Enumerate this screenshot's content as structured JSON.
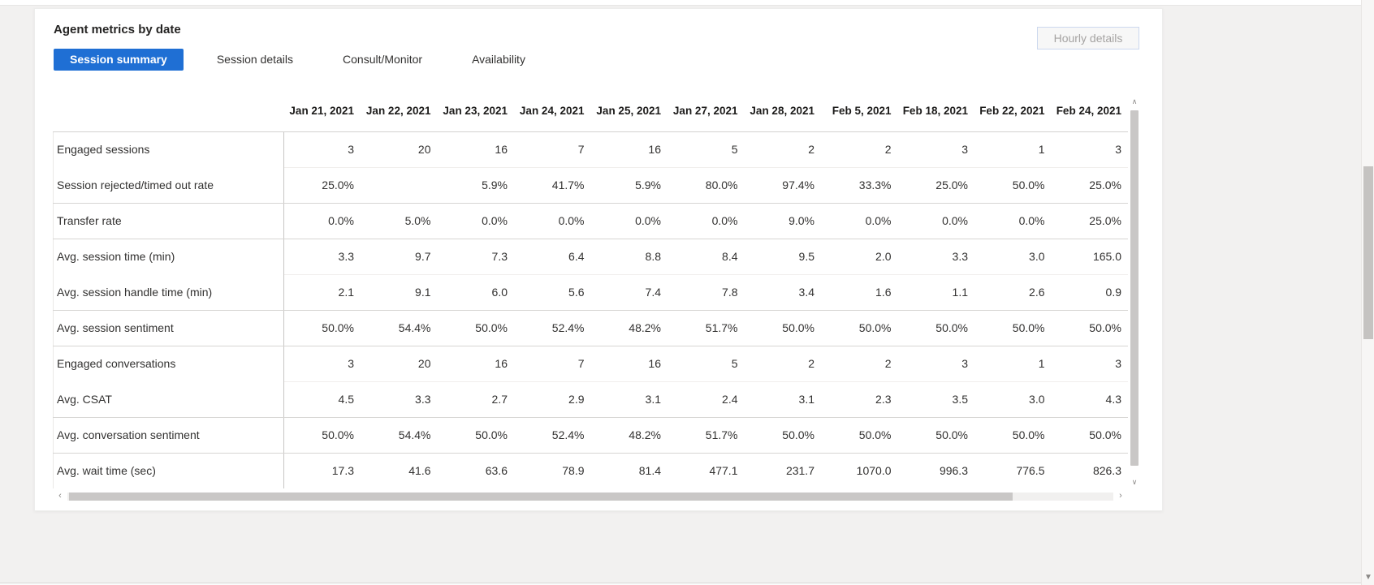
{
  "window": {
    "background": "#f2f1f0"
  },
  "panel": {
    "title": "Agent metrics by date",
    "accent_color": "#1f6fd4",
    "tabs": [
      {
        "label": "Session summary",
        "active": true
      },
      {
        "label": "Session details",
        "active": false
      },
      {
        "label": "Consult/Monitor",
        "active": false
      },
      {
        "label": "Availability",
        "active": false
      }
    ],
    "hourly_details_button": "Hourly details"
  },
  "table": {
    "columns": [
      "Jan 21, 2021",
      "Jan 22, 2021",
      "Jan 23, 2021",
      "Jan 24, 2021",
      "Jan 25, 2021",
      "Jan 27, 2021",
      "Jan 28, 2021",
      "Feb 5, 2021",
      "Feb 18, 2021",
      "Feb 22, 2021",
      "Feb 24, 2021"
    ],
    "rows": [
      {
        "label": "Engaged sessions",
        "group_end": false,
        "values": [
          "3",
          "20",
          "16",
          "7",
          "16",
          "5",
          "2",
          "2",
          "3",
          "1",
          "3"
        ]
      },
      {
        "label": "Session rejected/timed out rate",
        "group_end": true,
        "values": [
          "25.0%",
          "",
          "5.9%",
          "41.7%",
          "5.9%",
          "80.0%",
          "97.4%",
          "33.3%",
          "25.0%",
          "50.0%",
          "25.0%"
        ]
      },
      {
        "label": "Transfer rate",
        "group_end": true,
        "values": [
          "0.0%",
          "5.0%",
          "0.0%",
          "0.0%",
          "0.0%",
          "0.0%",
          "9.0%",
          "0.0%",
          "0.0%",
          "0.0%",
          "25.0%"
        ]
      },
      {
        "label": "Avg. session time (min)",
        "group_end": false,
        "values": [
          "3.3",
          "9.7",
          "7.3",
          "6.4",
          "8.8",
          "8.4",
          "9.5",
          "2.0",
          "3.3",
          "3.0",
          "165.0"
        ]
      },
      {
        "label": "Avg. session handle time (min)",
        "group_end": true,
        "values": [
          "2.1",
          "9.1",
          "6.0",
          "5.6",
          "7.4",
          "7.8",
          "3.4",
          "1.6",
          "1.1",
          "2.6",
          "0.9"
        ]
      },
      {
        "label": "Avg. session sentiment",
        "group_end": true,
        "values": [
          "50.0%",
          "54.4%",
          "50.0%",
          "52.4%",
          "48.2%",
          "51.7%",
          "50.0%",
          "50.0%",
          "50.0%",
          "50.0%",
          "50.0%"
        ]
      },
      {
        "label": "Engaged conversations",
        "group_end": false,
        "values": [
          "3",
          "20",
          "16",
          "7",
          "16",
          "5",
          "2",
          "2",
          "3",
          "1",
          "3"
        ]
      },
      {
        "label": "Avg. CSAT",
        "group_end": true,
        "values": [
          "4.5",
          "3.3",
          "2.7",
          "2.9",
          "3.1",
          "2.4",
          "3.1",
          "2.3",
          "3.5",
          "3.0",
          "4.3"
        ]
      },
      {
        "label": "Avg. conversation sentiment",
        "group_end": true,
        "values": [
          "50.0%",
          "54.4%",
          "50.0%",
          "52.4%",
          "48.2%",
          "51.7%",
          "50.0%",
          "50.0%",
          "50.0%",
          "50.0%",
          "50.0%"
        ]
      },
      {
        "label": "Avg. wait time (sec)",
        "group_end": false,
        "values": [
          "17.3",
          "41.6",
          "63.6",
          "78.9",
          "81.4",
          "477.1",
          "231.7",
          "1070.0",
          "996.3",
          "776.5",
          "826.3"
        ]
      }
    ]
  },
  "icons": {
    "scroll_up": "∧",
    "scroll_down": "∨",
    "scroll_left": "‹",
    "scroll_right": "›",
    "page_scroll_down": "▼"
  }
}
